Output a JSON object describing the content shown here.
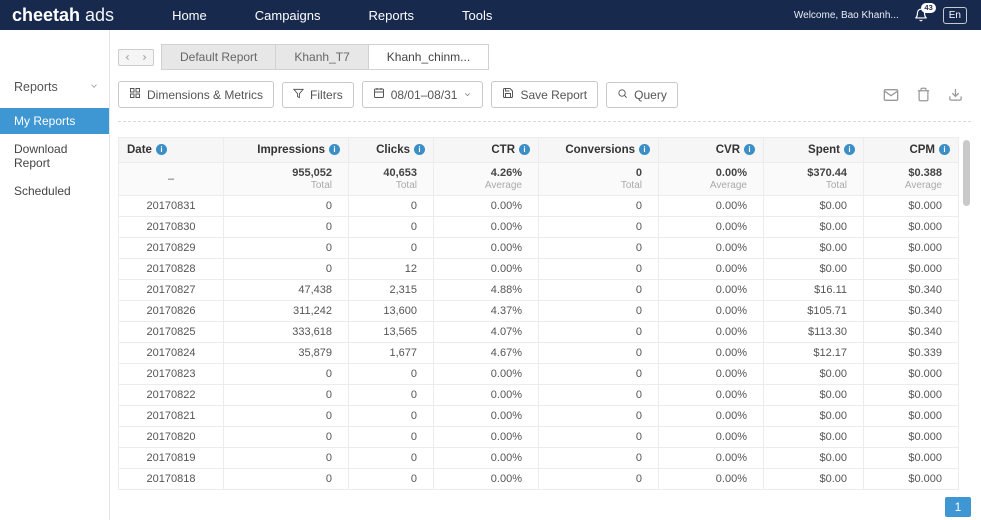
{
  "navbar": {
    "brand": {
      "bold": "cheetah",
      "light": " ads"
    },
    "items": [
      "Home",
      "Campaigns",
      "Reports",
      "Tools"
    ],
    "welcome": "Welcome, Bao Khanh...",
    "notification_count": "43",
    "language": "En"
  },
  "sidebar": {
    "section_label": "Reports",
    "items": [
      {
        "label": "My Reports",
        "active": true
      },
      {
        "label": "Download Report",
        "active": false
      },
      {
        "label": "Scheduled",
        "active": false
      }
    ]
  },
  "tabs": [
    {
      "label": "Default Report",
      "active": false
    },
    {
      "label": "Khanh_T7",
      "active": false
    },
    {
      "label": "Khanh_chinm...",
      "active": true
    }
  ],
  "toolbar": {
    "dimensions_metrics_label": "Dimensions & Metrics",
    "filters_label": "Filters",
    "date_range_label": "08/01–08/31",
    "save_report_label": "Save Report",
    "query_label": "Query"
  },
  "table": {
    "columns": [
      "Date",
      "Impressions",
      "Clicks",
      "CTR",
      "Conversions",
      "CVR",
      "Spent",
      "CPM"
    ],
    "summary": {
      "date": "–",
      "cells": [
        {
          "value": "955,052",
          "label": "Total"
        },
        {
          "value": "40,653",
          "label": "Total"
        },
        {
          "value": "4.26%",
          "label": "Average"
        },
        {
          "value": "0",
          "label": "Total"
        },
        {
          "value": "0.00%",
          "label": "Average"
        },
        {
          "value": "$370.44",
          "label": "Total"
        },
        {
          "value": "$0.388",
          "label": "Average"
        }
      ]
    },
    "rows": [
      [
        "20170831",
        "0",
        "0",
        "0.00%",
        "0",
        "0.00%",
        "$0.00",
        "$0.000"
      ],
      [
        "20170830",
        "0",
        "0",
        "0.00%",
        "0",
        "0.00%",
        "$0.00",
        "$0.000"
      ],
      [
        "20170829",
        "0",
        "0",
        "0.00%",
        "0",
        "0.00%",
        "$0.00",
        "$0.000"
      ],
      [
        "20170828",
        "0",
        "12",
        "0.00%",
        "0",
        "0.00%",
        "$0.00",
        "$0.000"
      ],
      [
        "20170827",
        "47,438",
        "2,315",
        "4.88%",
        "0",
        "0.00%",
        "$16.11",
        "$0.340"
      ],
      [
        "20170826",
        "311,242",
        "13,600",
        "4.37%",
        "0",
        "0.00%",
        "$105.71",
        "$0.340"
      ],
      [
        "20170825",
        "333,618",
        "13,565",
        "4.07%",
        "0",
        "0.00%",
        "$113.30",
        "$0.340"
      ],
      [
        "20170824",
        "35,879",
        "1,677",
        "4.67%",
        "0",
        "0.00%",
        "$12.17",
        "$0.339"
      ],
      [
        "20170823",
        "0",
        "0",
        "0.00%",
        "0",
        "0.00%",
        "$0.00",
        "$0.000"
      ],
      [
        "20170822",
        "0",
        "0",
        "0.00%",
        "0",
        "0.00%",
        "$0.00",
        "$0.000"
      ],
      [
        "20170821",
        "0",
        "0",
        "0.00%",
        "0",
        "0.00%",
        "$0.00",
        "$0.000"
      ],
      [
        "20170820",
        "0",
        "0",
        "0.00%",
        "0",
        "0.00%",
        "$0.00",
        "$0.000"
      ],
      [
        "20170819",
        "0",
        "0",
        "0.00%",
        "0",
        "0.00%",
        "$0.00",
        "$0.000"
      ],
      [
        "20170818",
        "0",
        "0",
        "0.00%",
        "0",
        "0.00%",
        "$0.00",
        "$0.000"
      ]
    ]
  },
  "pagination": {
    "current_page": "1"
  },
  "colors": {
    "accent_blue": "#3e97d3",
    "navbar_navy": "#17294d",
    "info_icon_blue": "#3b8fc7"
  }
}
